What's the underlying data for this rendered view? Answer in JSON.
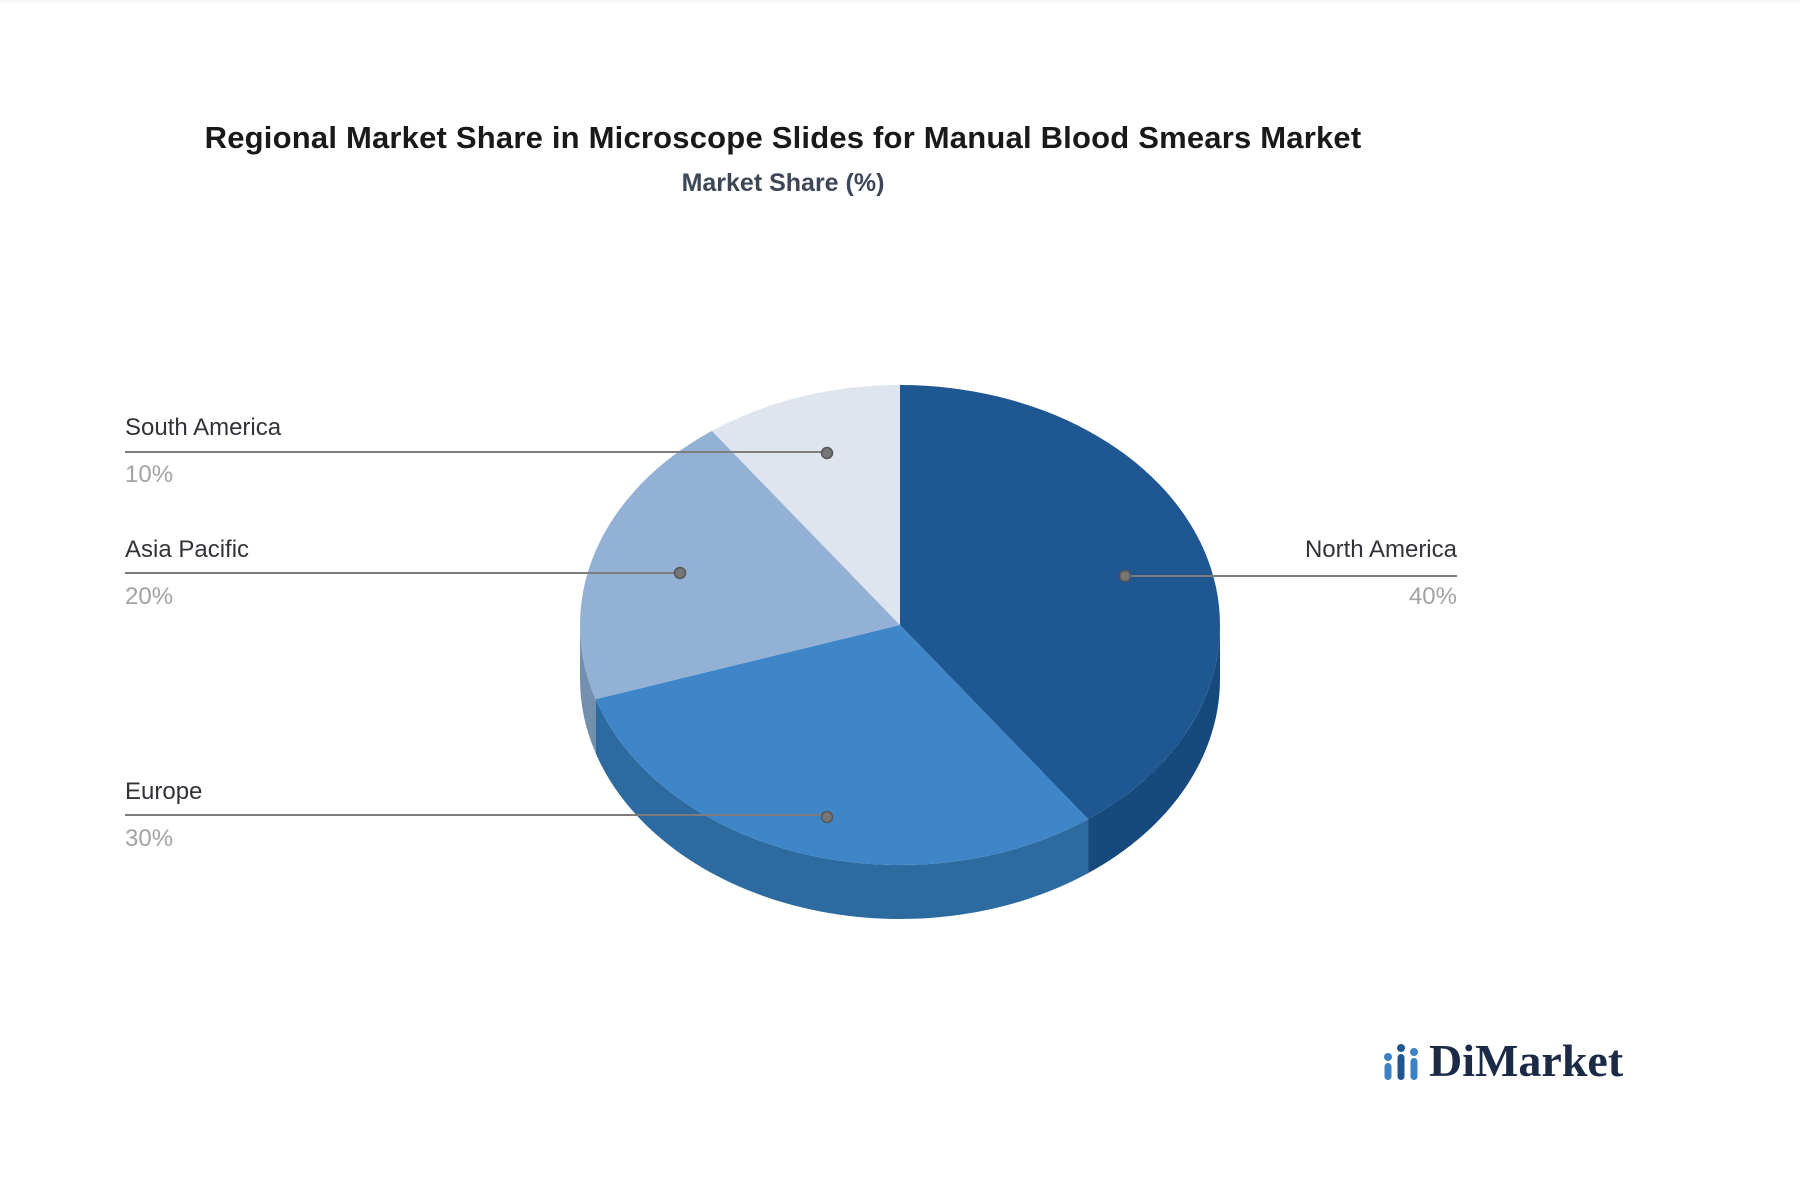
{
  "page": {
    "background": "#ffffff"
  },
  "chart": {
    "title": "Regional Market Share in Microscope Slides for Manual Blood Smears Market",
    "subtitle": "Market Share (%)"
  },
  "chart_data": {
    "type": "pie",
    "style": "3d",
    "title": "Regional Market Share in Microscope Slides for Manual Blood Smears Market",
    "subtitle": "Market Share (%)",
    "unit": "%",
    "start_angle": "12-oclock",
    "direction": "clockwise",
    "categories": [
      "North America",
      "Europe",
      "Asia Pacific",
      "South America"
    ],
    "values": [
      40,
      30,
      20,
      10
    ],
    "colors": [
      "#1f5792",
      "#3e86c8",
      "#92b1d5",
      "#dfe5ee"
    ],
    "side_colors": [
      "#174a7c",
      "#2d6aa0",
      "#7390af",
      "#b9c4d3"
    ],
    "leader_line_color": "#7d7d7d",
    "legend_position": "none",
    "callout_labels": [
      {
        "name": "South America",
        "value": "10%"
      },
      {
        "name": "Asia Pacific",
        "value": "20%"
      },
      {
        "name": "Europe",
        "value": "30%"
      },
      {
        "name": "North America",
        "value": "40%"
      }
    ]
  },
  "branding": {
    "logo_text": "DiMarket",
    "logo_icon": "bar-chart-icon"
  }
}
